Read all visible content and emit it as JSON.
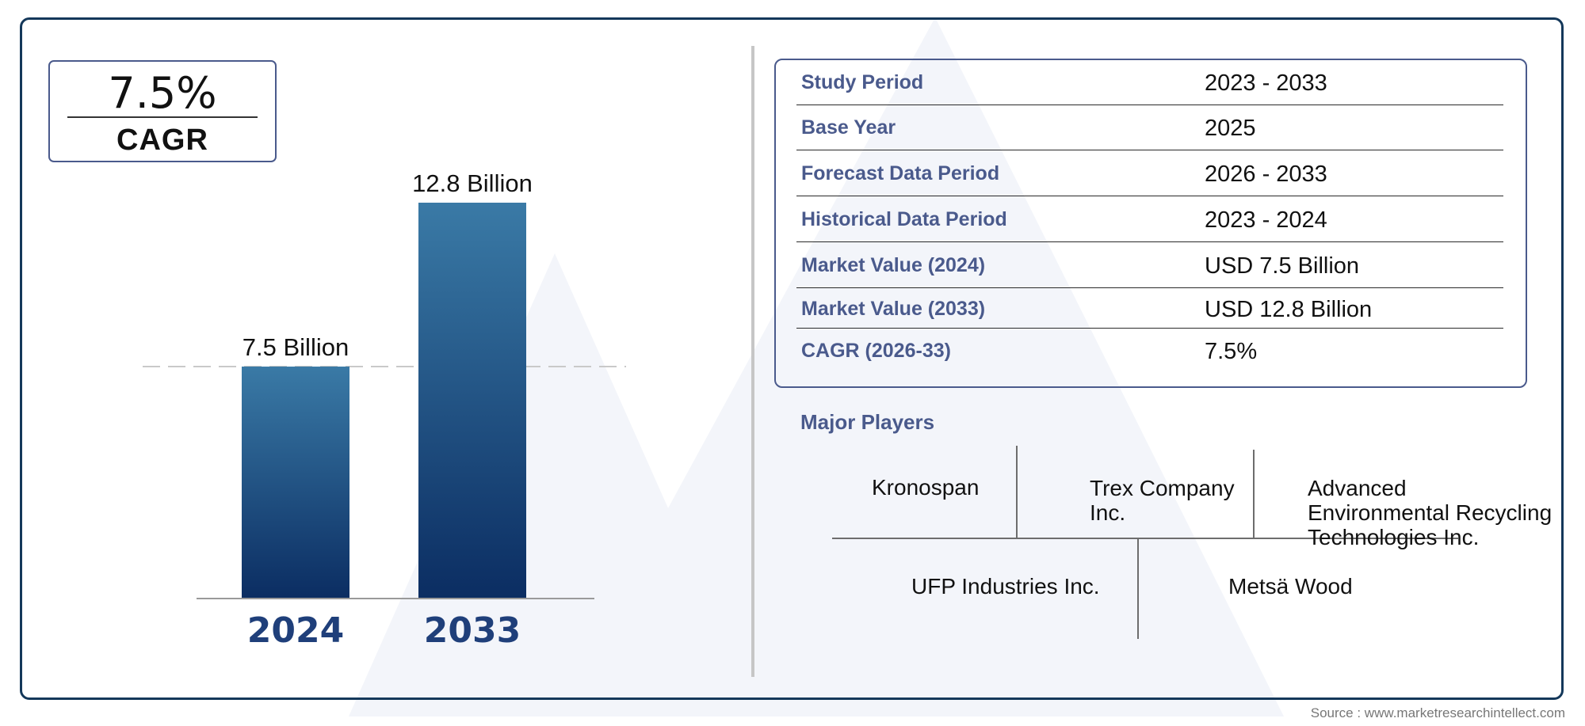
{
  "colors": {
    "frame": "#14385a",
    "accent": "#4a5a8c",
    "bar_top": "#3a7aa6",
    "bar_bottom": "#0b2d62",
    "year_label": "#1f3f7a"
  },
  "summary": {
    "cagr_value": "7.5%",
    "cagr_label": "CAGR"
  },
  "chart_data": {
    "type": "bar",
    "categories": [
      "2024",
      "2033"
    ],
    "values": [
      7.5,
      12.8
    ],
    "data_labels": [
      "7.5 Billion",
      "12.8 Billion"
    ],
    "ylim": [
      0,
      12.8
    ],
    "reference_line_value": 7.5,
    "title": "",
    "xlabel": "",
    "ylabel": ""
  },
  "study_table": {
    "rows": [
      {
        "label": "Study Period",
        "value": "2023 - 2033"
      },
      {
        "label": "Base Year",
        "value": "2025"
      },
      {
        "label": "Forecast Data Period",
        "value": "2026 - 2033"
      },
      {
        "label": "Historical Data Period",
        "value": "2023 - 2024"
      },
      {
        "label": "Market Value (2024)",
        "value": "USD 7.5 Billion"
      },
      {
        "label": "Market Value (2033)",
        "value": "USD 12.8 Billion"
      },
      {
        "label": "CAGR (2026-33)",
        "value": "7.5%"
      }
    ]
  },
  "players": {
    "title": "Major Players",
    "items": [
      "Kronospan",
      "Trex Company Inc.",
      "Advanced Environmental Recycling Technologies Inc.",
      "UFP Industries Inc.",
      "Metsä Wood"
    ]
  },
  "source": "Source : www.marketresearchintellect.com"
}
